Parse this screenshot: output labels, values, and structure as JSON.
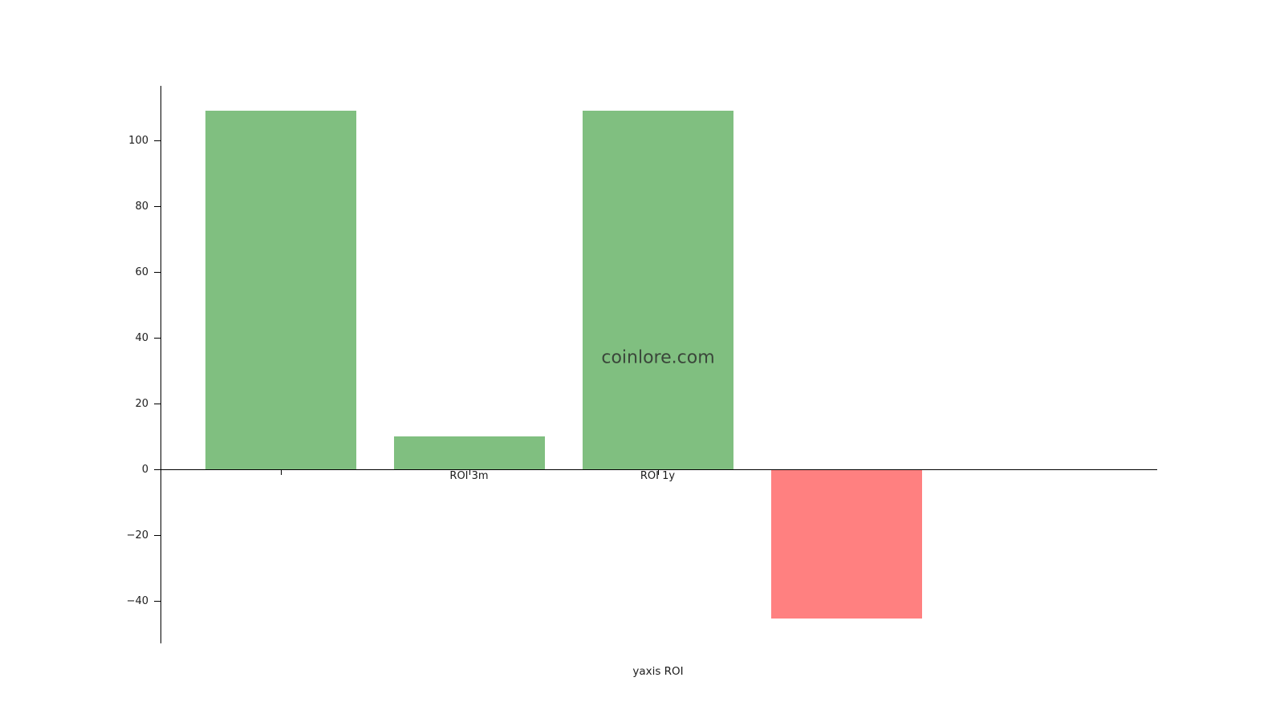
{
  "chart_data": {
    "type": "bar",
    "title": "",
    "categories": [
      "",
      "ROI 3m",
      "ROI 1y",
      ""
    ],
    "values": [
      109,
      10,
      109,
      -45
    ],
    "bar_colors": [
      "#80bf80",
      "#80bf80",
      "#80bf80",
      "#ff8080"
    ],
    "positive_color": "#80bf80",
    "negative_color": "#ff8080",
    "xlabel": "yaxis ROI",
    "ylabel": "",
    "yticks": [
      -40,
      -20,
      0,
      20,
      40,
      60,
      80,
      100
    ],
    "ylim": [
      -52.9,
      116.7
    ],
    "grid": false,
    "legend_position": "none",
    "watermark": "coinlore.com"
  }
}
